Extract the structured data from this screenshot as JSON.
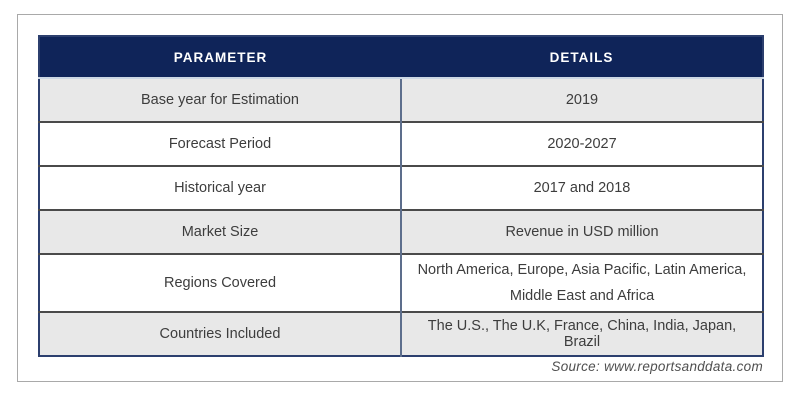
{
  "chart_data": {
    "type": "table",
    "columns": [
      "PARAMETER",
      "DETAILS"
    ],
    "rows": [
      [
        "Base year for Estimation",
        "2019"
      ],
      [
        "Forecast Period",
        "2020-2027"
      ],
      [
        "Historical year",
        "2017 and 2018"
      ],
      [
        "Market Size",
        "Revenue in USD million"
      ],
      [
        "Regions Covered",
        "North America, Europe, Asia Pacific, Latin America, Middle East and Africa"
      ],
      [
        "Countries Included",
        "The U.S., The  U.K, France, China, India, Japan, Brazil"
      ]
    ],
    "regions_line_break": [
      "North America, Europe, Asia Pacific, Latin America,",
      "Middle East and Africa"
    ],
    "shaded_row_indexes": [
      0,
      3,
      5
    ],
    "source": "Source: www.reportsanddata.com",
    "legend_position": "none",
    "grid": "on"
  },
  "colors": {
    "header_background": "#0f2459",
    "header_text": "#ffffff",
    "shaded_row_background": "#e8e8e8",
    "white_row_background": "#ffffff",
    "table_outer_border": "#2c3f6e",
    "row_separator": "#4a4a4a",
    "column_divider": "#5d6e8c",
    "header_underline": "#ccd7e4",
    "cell_text": "#3d3d3d",
    "source_text": "#4f4f4f",
    "frame_border": "#a9a9a9"
  }
}
